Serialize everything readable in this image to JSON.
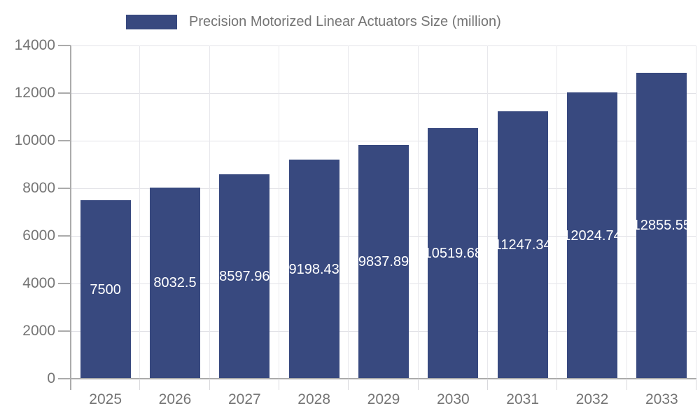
{
  "legend": {
    "label": "Precision Motorized Linear Actuators Size (million)",
    "swatch_color": "#38497f"
  },
  "chart_data": {
    "type": "bar",
    "title": "Precision Motorized Linear Actuators Size (million)",
    "categories": [
      "2025",
      "2026",
      "2027",
      "2028",
      "2029",
      "2030",
      "2031",
      "2032",
      "2033"
    ],
    "values": [
      7500,
      8032.5,
      8597.96,
      9198.43,
      9837.89,
      10519.68,
      11247.34,
      12024.74,
      12855.55
    ],
    "value_labels": [
      "7500",
      "8032.5",
      "8597.96",
      "9198.43",
      "9837.89",
      "10519.68",
      "11247.34",
      "12024.74",
      "12855.55"
    ],
    "xlabel": "",
    "ylabel": "",
    "ylim": [
      0,
      14000
    ],
    "y_ticks": [
      0,
      2000,
      4000,
      6000,
      8000,
      10000,
      12000,
      14000
    ],
    "grid": true,
    "legend_position": "top",
    "bar_color": "#38497f",
    "value_label_color": "#ffffff",
    "axis_text_color": "#757575"
  }
}
